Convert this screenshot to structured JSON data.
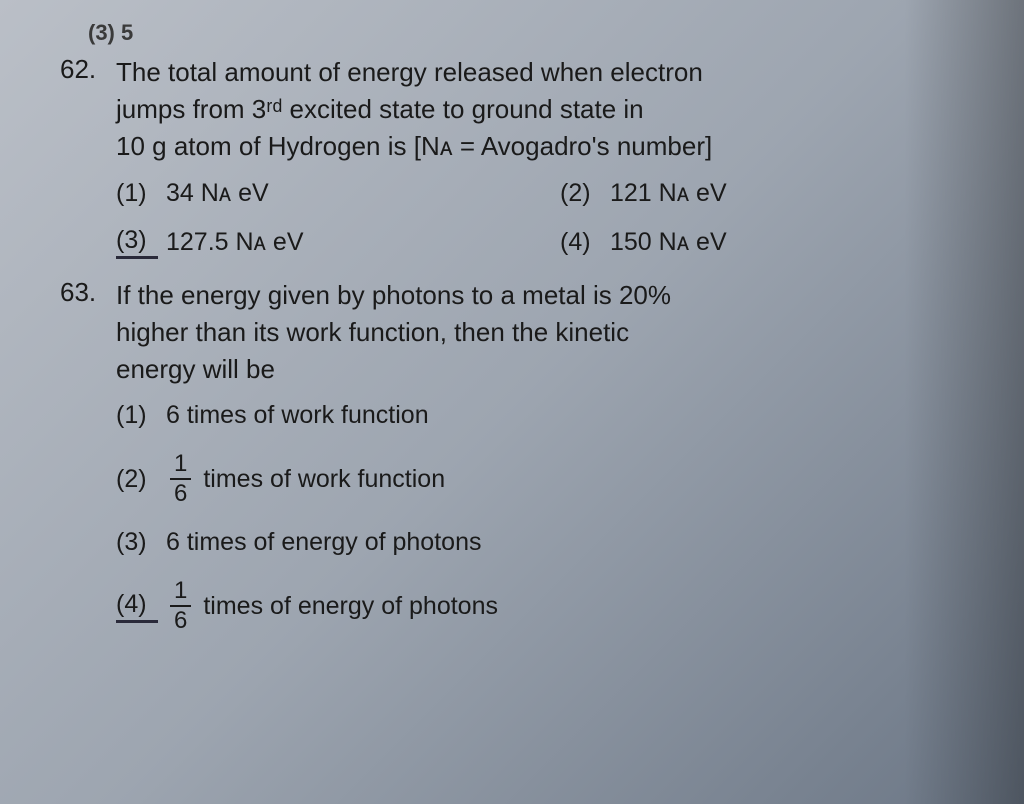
{
  "page": {
    "background_gradient": [
      "#babfc7",
      "#9da5b0",
      "#6b7685"
    ],
    "text_color": "#1a1a1a",
    "font_family": "Arial",
    "base_fontsize": 26
  },
  "partial_top": "(3) 5",
  "q62": {
    "number": "62.",
    "text_line1": "The total amount of energy released when electron",
    "text_line2": "jumps from 3ʳᵈ excited state to ground state in",
    "text_line3": "10 g atom of Hydrogen is [Nᴀ = Avogadro's number]",
    "options": {
      "o1": {
        "num": "(1)",
        "label": "34 Nᴀ eV"
      },
      "o2": {
        "num": "(2)",
        "label": "121 Nᴀ eV"
      },
      "o3": {
        "num": "(3)",
        "label": "127.5 Nᴀ eV",
        "marked": true
      },
      "o4": {
        "num": "(4)",
        "label": "150 Nᴀ eV"
      }
    }
  },
  "q63": {
    "number": "63.",
    "text_line1": "If the energy given by photons to a metal is 20%",
    "text_line2": "higher than its work function, then the kinetic",
    "text_line3": "energy will be",
    "options": {
      "o1": {
        "num": "(1)",
        "label": "6 times of work function"
      },
      "o2": {
        "num": "(2)",
        "frac_num": "1",
        "frac_den": "6",
        "label_tail": " times of work function"
      },
      "o3": {
        "num": "(3)",
        "label": "6 times of energy of photons"
      },
      "o4": {
        "num": "(4)",
        "frac_num": "1",
        "frac_den": "6",
        "label_tail": " times of energy of photons",
        "marked": true
      }
    }
  }
}
